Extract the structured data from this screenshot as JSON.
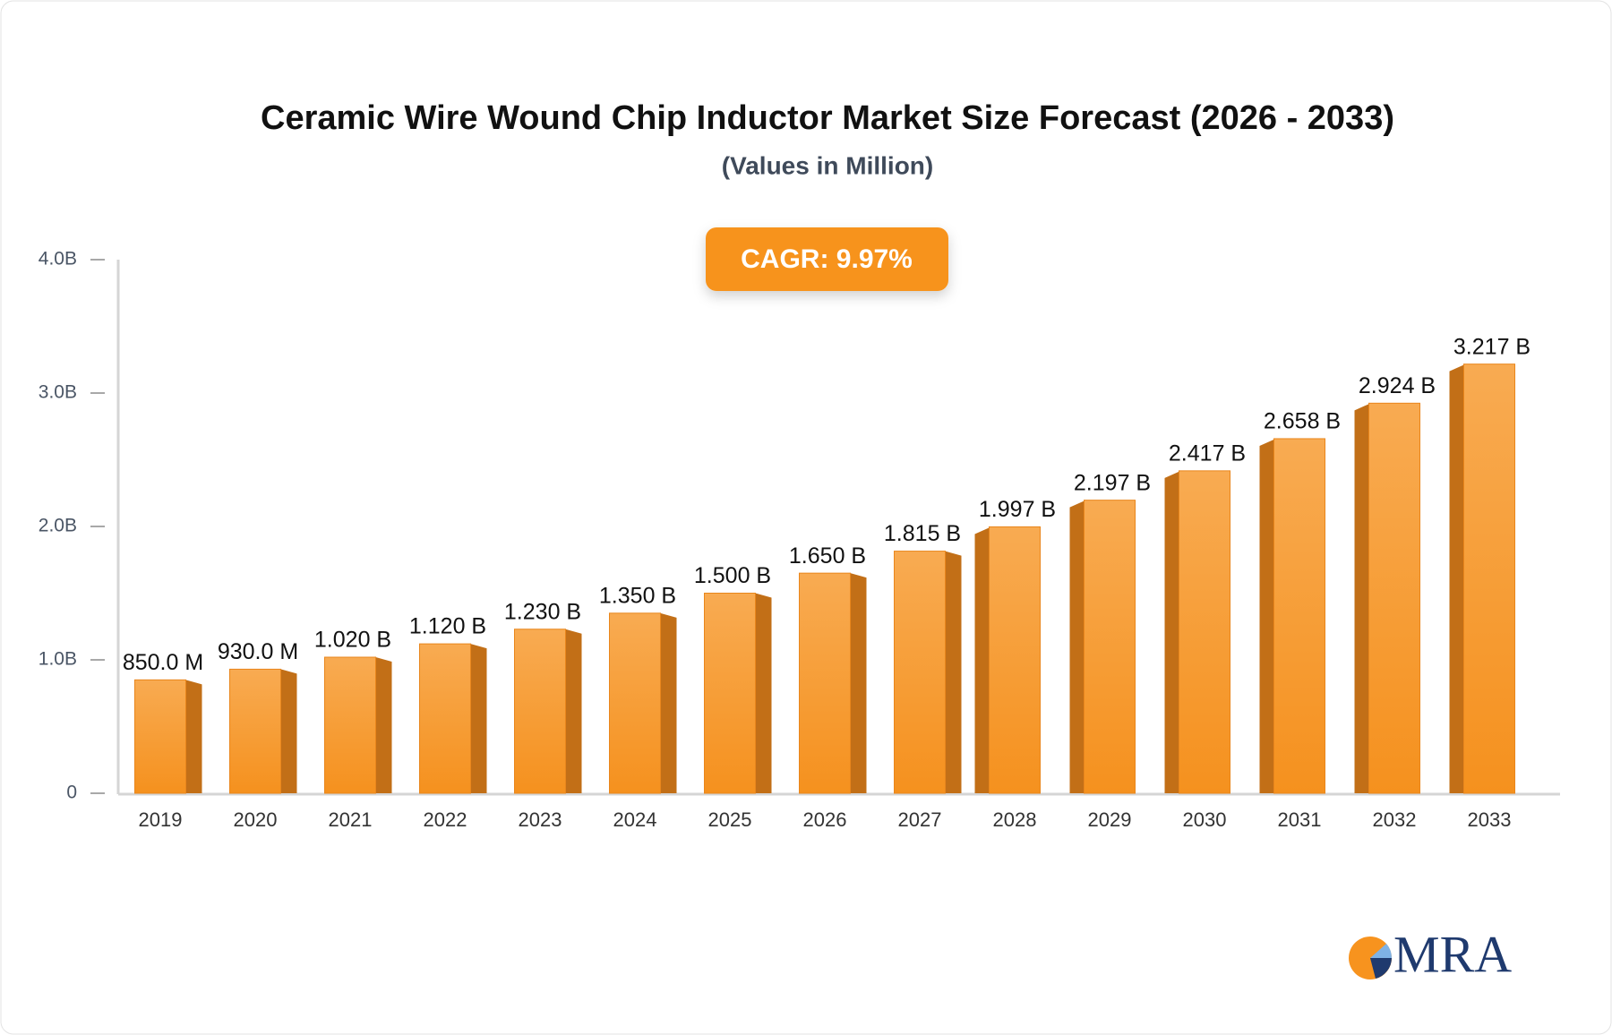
{
  "chart_data": {
    "type": "bar3d",
    "title": "Ceramic Wire Wound Chip Inductor Market Size Forecast (2026 - 2033)",
    "subtitle": "(Values in Million)",
    "cagr_label": "CAGR: 9.97%",
    "logo": "MRA",
    "categories": [
      "2019",
      "2020",
      "2021",
      "2022",
      "2023",
      "2024",
      "2025",
      "2026",
      "2027",
      "2028",
      "2029",
      "2030",
      "2031",
      "2032",
      "2033"
    ],
    "values": [
      850,
      930,
      1020,
      1120,
      1230,
      1350,
      1500,
      1650,
      1815,
      1997,
      2197,
      2417,
      2658,
      2924,
      3217
    ],
    "value_labels": [
      "850.0 M",
      "930.0 M",
      "1.020 B",
      "1.120 B",
      "1.230 B",
      "1.350 B",
      "1.500 B",
      "1.650 B",
      "1.815 B",
      "1.997 B",
      "2.197 B",
      "2.417 B",
      "2.658 B",
      "2.924 B",
      "3.217 B"
    ],
    "color": "#f7a240",
    "ylim": [
      0,
      4000
    ],
    "yticks": [
      0,
      {
        "value": 1000,
        "label": "1.0B"
      },
      {
        "value": 2000,
        "label": "2.0B"
      },
      {
        "value": 3000,
        "label": "3.0B"
      },
      {
        "value": 4000,
        "label": "4.0B"
      }
    ],
    "grid": false
  }
}
